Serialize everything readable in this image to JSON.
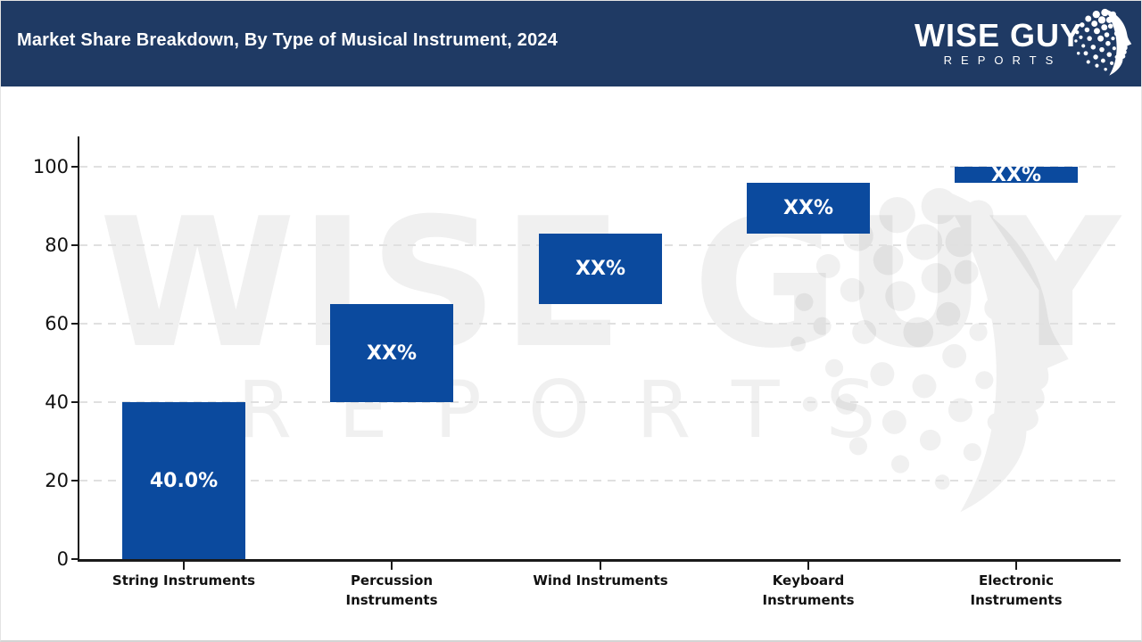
{
  "header": {
    "title": "Market Share Breakdown, By Type of Musical Instrument, 2024",
    "bg_color": "#1f3a64",
    "logo": {
      "line1": "WISE GUY",
      "line2": "REPORTS"
    }
  },
  "watermark": {
    "line1": "WISE GUY",
    "line2": "REPORTS"
  },
  "chart_data": {
    "type": "bar",
    "subtype": "waterfall",
    "title": "Market Share Breakdown, By Type of Musical Instrument, 2024",
    "categories": [
      "String Instruments",
      "Percussion\nInstruments",
      "Wind Instruments",
      "Keyboard\nInstruments",
      "Electronic\nInstruments"
    ],
    "values": [
      40,
      25,
      18,
      13,
      4
    ],
    "segment_starts": [
      0,
      40,
      65,
      83,
      96
    ],
    "segment_ends": [
      40,
      65,
      83,
      96,
      100
    ],
    "bar_labels": [
      "40.0%",
      "XX%",
      "XX%",
      "XX%",
      "XX%"
    ],
    "yticks": [
      0,
      20,
      40,
      60,
      80,
      100
    ],
    "ylim": [
      0,
      106
    ],
    "xlabel": "",
    "ylabel": "",
    "bar_color": "#0b4a9e",
    "grid": "horizontal-dashed",
    "legend": "none"
  }
}
